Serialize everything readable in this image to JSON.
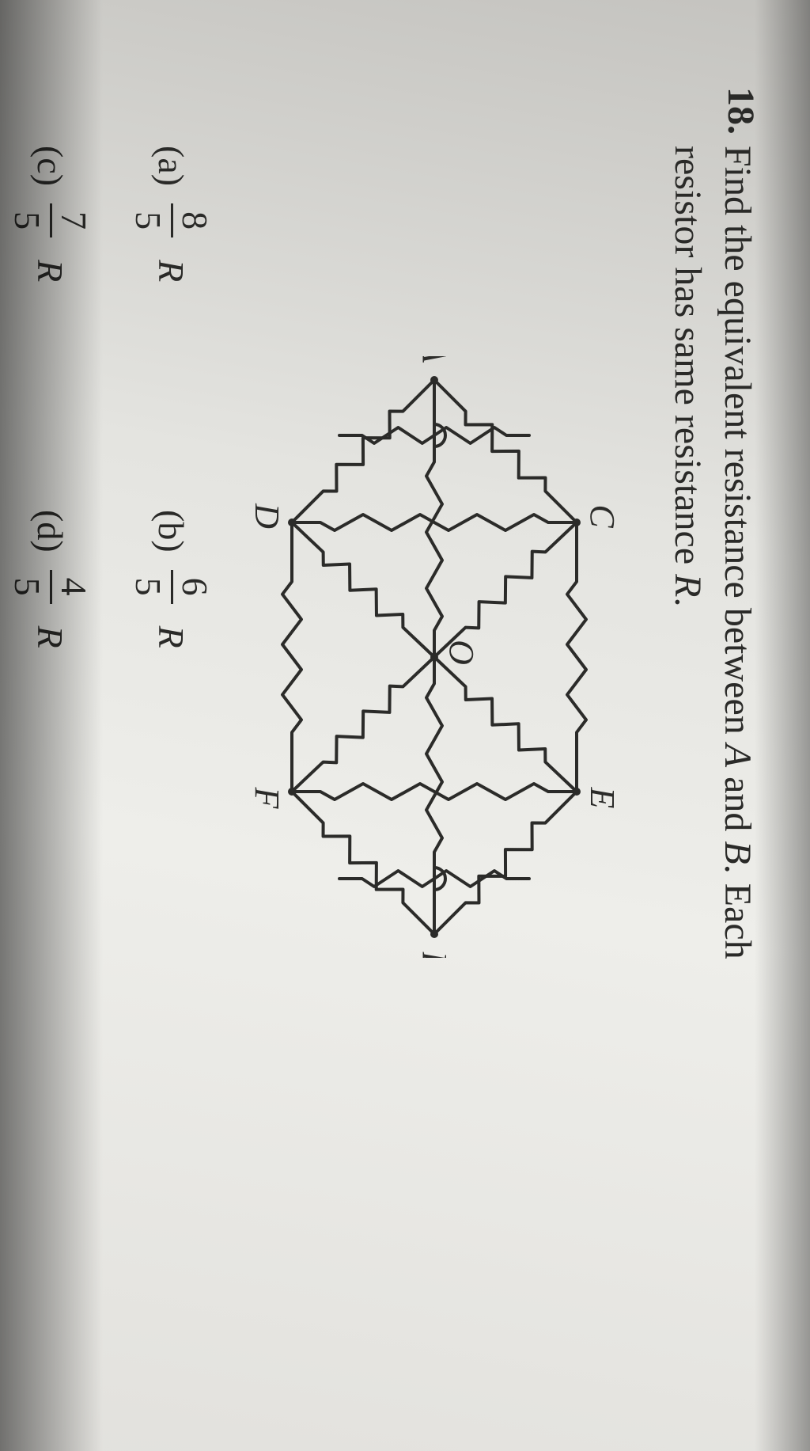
{
  "question": {
    "number": "18.",
    "line1_a": "Find the equivalent resistance between ",
    "line1_A": "A",
    "line1_b": " and ",
    "line1_B": "B",
    "line1_c": ". Each",
    "line2_a": "resistor has same resistance ",
    "line2_R": "R",
    "line2_b": "."
  },
  "circuit": {
    "stroke": "#2b2b29",
    "stroke_width": 4,
    "labels": {
      "A": "A",
      "B": "B",
      "C": "C",
      "D": "D",
      "E": "E",
      "F": "F",
      "O": "O"
    },
    "label_fontsize": 44,
    "label_font": "italic 44px Georgia"
  },
  "options": {
    "a": {
      "label": "(a)",
      "num": "8",
      "den": "5",
      "R": "R"
    },
    "b": {
      "label": "(b)",
      "num": "6",
      "den": "5",
      "R": "R"
    },
    "c": {
      "label": "(c)",
      "num": "7",
      "den": "5",
      "R": "R"
    },
    "d": {
      "label": "(d)",
      "num": "4",
      "den": "5",
      "R": "R"
    }
  }
}
